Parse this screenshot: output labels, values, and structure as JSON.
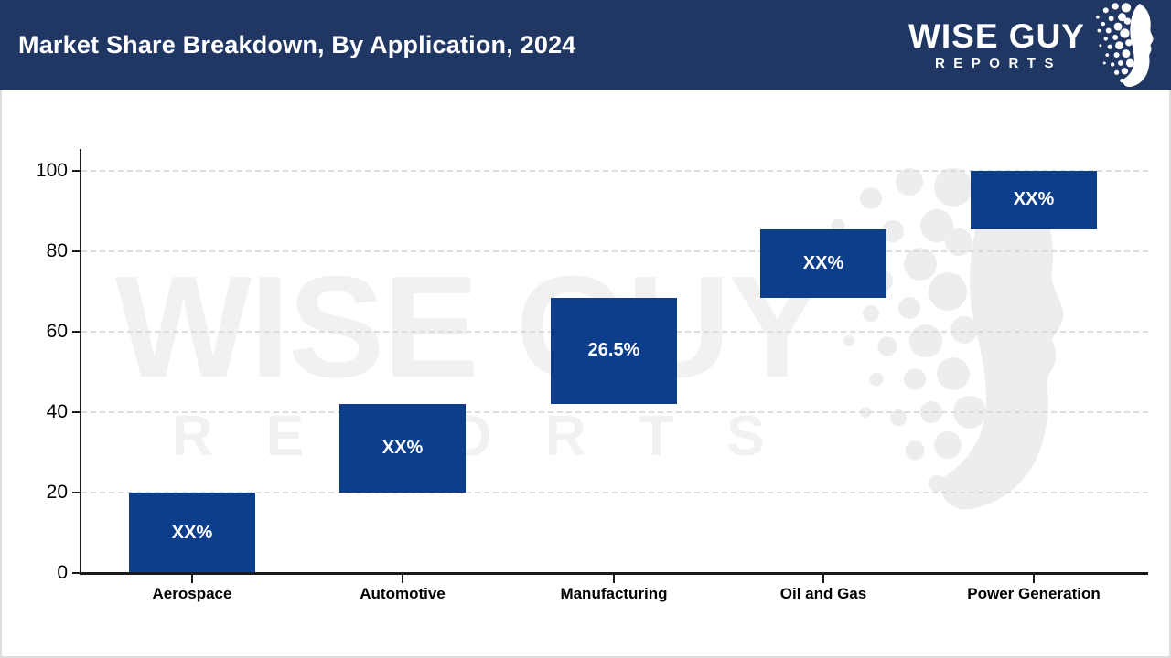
{
  "header": {
    "title": "Market Share Breakdown, By Application, 2024",
    "bg_color": "#203663",
    "logo": {
      "line1": "WISE GUY",
      "line2": "REPORTS"
    }
  },
  "watermark": {
    "line1": "WISE GUY",
    "line2": "REPORTS"
  },
  "chart_data": {
    "type": "bar",
    "subtype": "floating-segment-waterfall",
    "title": "Market Share Breakdown, By Application, 2024",
    "categories": [
      "Aerospace",
      "Automotive",
      "Manufacturing",
      "Oil and Gas",
      "Power Generation"
    ],
    "series": [
      {
        "name": "Market Share",
        "segments": [
          {
            "category": "Aerospace",
            "from": 0,
            "to": 20,
            "value_label": "XX%"
          },
          {
            "category": "Automotive",
            "from": 20,
            "to": 42,
            "value_label": "XX%"
          },
          {
            "category": "Manufacturing",
            "from": 42,
            "to": 68.5,
            "value_label": "26.5%"
          },
          {
            "category": "Oil and Gas",
            "from": 68.5,
            "to": 85.5,
            "value_label": "XX%"
          },
          {
            "category": "Power Generation",
            "from": 85.5,
            "to": 100,
            "value_label": "XX%"
          }
        ]
      }
    ],
    "xlabel": "",
    "ylabel": "",
    "ylim": [
      0,
      100
    ],
    "yticks": [
      0,
      20,
      40,
      60,
      80,
      100
    ],
    "grid": "horizontal-dashed",
    "legend": "none",
    "bar_color": "#0d3e8c",
    "bar_label_color": "#ffffff",
    "axis_color": "#1a1a1a",
    "gridline_color": "#dcdcdc"
  }
}
